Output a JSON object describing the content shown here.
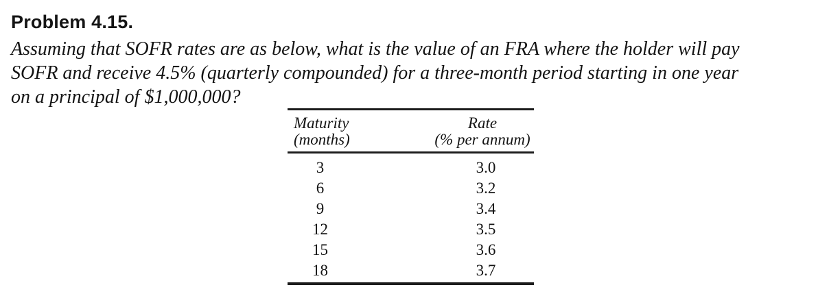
{
  "page": {
    "background_color": "#ffffff",
    "text_color": "#141414",
    "rule_color": "#1c1c1c"
  },
  "problem": {
    "title": "Problem 4.15.",
    "statement_lines": [
      "Assuming that SOFR rates are as below, what is the value of an FRA where the holder will pay",
      "SOFR and receive 4.5% (quarterly compounded) for a three-month period starting in one year",
      "on a principal of $1,000,000?"
    ]
  },
  "table": {
    "columns": [
      {
        "label_line1": "Maturity",
        "label_line2": "(months)"
      },
      {
        "label_line1": "Rate",
        "label_line2": "(% per annum)"
      }
    ],
    "rows": [
      {
        "maturity": "3",
        "rate": "3.0"
      },
      {
        "maturity": "6",
        "rate": "3.2"
      },
      {
        "maturity": "9",
        "rate": "3.4"
      },
      {
        "maturity": "12",
        "rate": "3.5"
      },
      {
        "maturity": "15",
        "rate": "3.6"
      },
      {
        "maturity": "18",
        "rate": "3.7"
      }
    ]
  }
}
